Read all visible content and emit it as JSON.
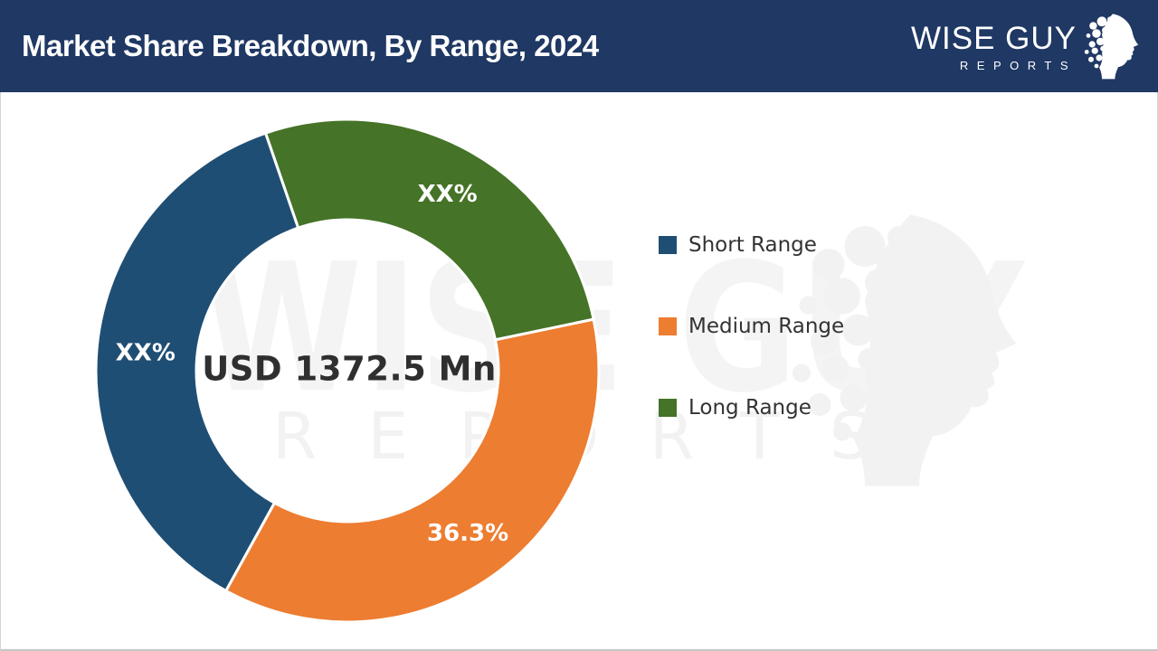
{
  "header": {
    "title": "Market Share Breakdown, By Range, 2024",
    "logo": {
      "line1": "WISE GUY",
      "line2": "REPORTS"
    }
  },
  "watermark": {
    "line1": "WISE GUY",
    "line2": "REPORTS"
  },
  "chart_data": {
    "type": "pie",
    "subtype": "donut",
    "title": "Market Share Breakdown, By Range, 2024",
    "center_label": "USD 1372.5 Mn",
    "units": "percent of market share",
    "start_angle_deg": -19,
    "clockwise": true,
    "hole_radius_ratio": 0.6,
    "legend_position": "right",
    "segments": [
      {
        "label": "Short Range",
        "color": "#1f4e74",
        "display_label": "XX%",
        "value_pct": 36.7
      },
      {
        "label": "Medium Range",
        "color": "#ed7d31",
        "display_label": "36.3%",
        "value_pct": 36.3
      },
      {
        "label": "Long Range",
        "color": "#457327",
        "display_label": "XX%",
        "value_pct": 27.0
      }
    ],
    "draw_order": [
      2,
      1,
      0
    ]
  },
  "colors": {
    "header_bg": "#1f3864",
    "slice_label_text": "#ffffff",
    "center_label_text": "#2f2f2f",
    "legend_text": "#333333",
    "watermark": "#f2f2f2"
  }
}
